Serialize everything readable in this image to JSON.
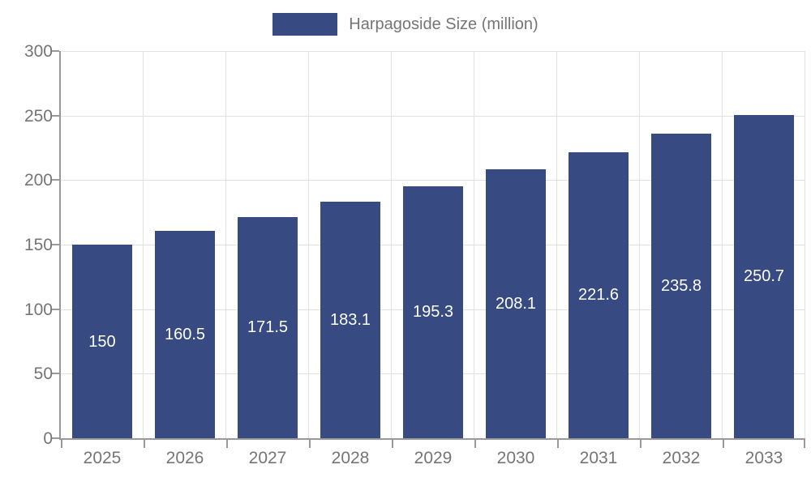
{
  "legend": {
    "label": "Harpagoside Size (million)"
  },
  "chart_data": {
    "type": "bar",
    "title": "Harpagoside Size (million)",
    "categories": [
      "2025",
      "2026",
      "2027",
      "2028",
      "2029",
      "2030",
      "2031",
      "2032",
      "2033"
    ],
    "values": [
      150,
      160.5,
      171.5,
      183.1,
      195.3,
      208.1,
      221.6,
      235.8,
      250.7
    ],
    "series_name": "Harpagoside Size (million)",
    "xlabel": "",
    "ylabel": "",
    "ylim": [
      0,
      300
    ],
    "yticks": [
      0,
      50,
      100,
      150,
      200,
      250,
      300
    ],
    "grid": true,
    "legend_position": "top",
    "bar_color": "#374a82",
    "bar_label_color": "#ffffff",
    "axis_color": "#999999",
    "grid_color": "#e2e2e2",
    "tick_label_color": "#757575"
  }
}
